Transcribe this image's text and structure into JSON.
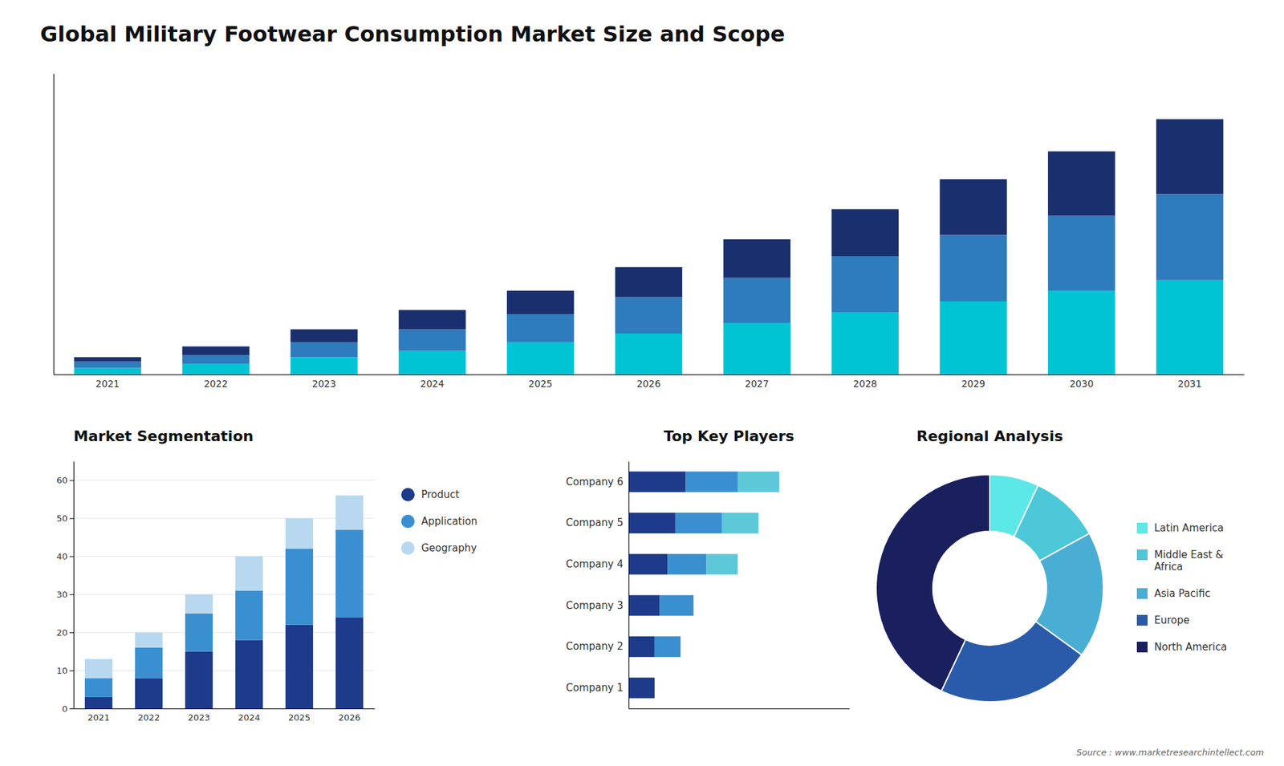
{
  "chart_data": [
    {
      "type": "bar",
      "title": "Global Military Footwear Consumption Market Size and Scope",
      "annotations": [
        "Source : www.marketresearchintellect.com"
      ],
      "stacked": true,
      "tick_labels": "x",
      "categories": [
        "2021",
        "2022",
        "2023",
        "2024",
        "2025",
        "2026",
        "2027",
        "2028",
        "2029",
        "2030",
        "2031"
      ],
      "ylim": [
        0,
        70.15
      ],
      "series": [
        {
          "color": "#00c4d4",
          "values": [
            1.5,
            2.5,
            4.0,
            5.5,
            7.5,
            9.5,
            12.0,
            14.5,
            17.0,
            19.5,
            22.0
          ]
        },
        {
          "color": "#2e7bbd",
          "values": [
            1.5,
            2.0,
            3.5,
            5.0,
            6.5,
            8.5,
            10.5,
            13.0,
            15.5,
            17.5,
            20.0
          ]
        },
        {
          "color": "#1a2f6e",
          "values": [
            1.0,
            2.0,
            3.0,
            4.5,
            5.5,
            7.0,
            9.0,
            11.0,
            13.0,
            15.0,
            17.5
          ]
        }
      ]
    },
    {
      "type": "bar",
      "title": "Market Segmentation",
      "stacked": true,
      "grid": true,
      "legend": "right",
      "categories": [
        "2021",
        "2022",
        "2023",
        "2024",
        "2025",
        "2026"
      ],
      "ylim": [
        0,
        65
      ],
      "yticks": [
        0,
        10,
        20,
        30,
        40,
        50,
        60
      ],
      "series": [
        {
          "name": "Product",
          "color": "#1e3a8a",
          "values": [
            3,
            8,
            15,
            18,
            22,
            24
          ]
        },
        {
          "name": "Application",
          "color": "#3a8fd1",
          "values": [
            5,
            8,
            10,
            13,
            20,
            23
          ]
        },
        {
          "name": "Geography",
          "color": "#b8d8f0",
          "values": [
            5,
            4,
            5,
            9,
            8,
            9
          ]
        }
      ]
    },
    {
      "type": "bar",
      "title": "Top Key Players",
      "orientation": "horizontal",
      "stacked": true,
      "tick_labels": "y",
      "categories": [
        "Company 6",
        "Company 5",
        "Company 4",
        "Company 3",
        "Company 2",
        "Company 1"
      ],
      "xlim": [
        0,
        0.85
      ],
      "series": [
        {
          "color": "#1e3a8a",
          "values": [
            0.22,
            0.18,
            0.15,
            0.12,
            0.1,
            0.1
          ]
        },
        {
          "color": "#3a8fd1",
          "values": [
            0.2,
            0.18,
            0.15,
            0.13,
            0.1,
            0.0
          ]
        },
        {
          "color": "#5dc8d8",
          "values": [
            0.16,
            0.14,
            0.12,
            0.0,
            0.0,
            0.0
          ]
        }
      ]
    },
    {
      "type": "pie",
      "title": "Regional Analysis",
      "legend": "right",
      "categories": [
        "Latin America",
        "Middle East &\nAfrica",
        "Asia Pacific",
        "Europe",
        "North America"
      ],
      "values": [
        7,
        10,
        18,
        22,
        43
      ],
      "colors": [
        "#5de8e8",
        "#4dc8d8",
        "#4aaed4",
        "#2a5aaa",
        "#1a1f5e"
      ]
    }
  ]
}
